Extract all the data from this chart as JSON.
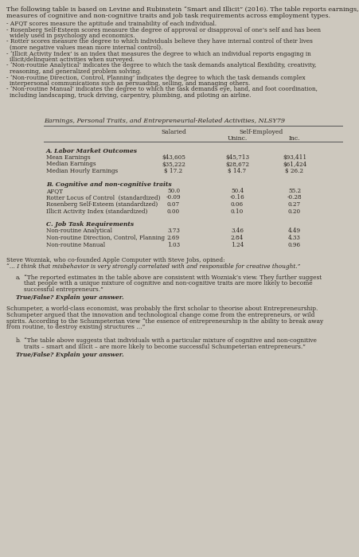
{
  "bg_color": "#cdc8be",
  "intro_text_line1": "The following table is based on Levine and Rubinstein “Smart and Illicit” (2016). The table reports earnings,",
  "intro_text_line2": "measures of cognitive and non-cognitive traits and job task requirements across employment types.",
  "bullets": [
    "- AFQT scores measure the aptitude and trainability of each individual.",
    "- Rosenberg Self-Esteem scores measure the degree of approval or disapproval of one’s self and has been\n  widely used in psychology and economics.",
    "- Rotter scores measure the degree to which individuals believe they have internal control of their lives\n  (more negative values mean more internal control).",
    "- ‘Illicit Activity Index’ is an index that measures the degree to which an individual reports engaging in\n  illicit/delinquent activities when surveyed.",
    "- ‘Non-routine Analytical’ indicates the degree to which the task demands analytical flexibility, creativity,\n  reasoning, and generalized problem solving.",
    "- ‘Non-routine Direction, Control, Planning’ indicates the degree to which the task demands complex\n  interpersonal communications such as persuading, selling, and managing others.",
    "- ‘Non-routine Manual’ indicates the degree to which the task demands eye, hand, and foot coordination,\n  including landscaping, truck driving, carpentry, plumbing, and piloting an airline."
  ],
  "table_title": "Earnings, Personal Traits, and Entrepreneurial-Related Activities, NLSY79",
  "sections": [
    {
      "header": "A. Labor Market Outcomes",
      "rows": [
        [
          "Mean Earnings",
          "$43,605",
          "$45,713",
          "$93,411"
        ],
        [
          "Median Earnings",
          "$35,222",
          "$28,672",
          "$61,424"
        ],
        [
          "Median Hourly Earnings",
          "$ 17.2",
          "$ 14.7",
          "$ 26.2"
        ]
      ]
    },
    {
      "header": "B. Cognitive and non-cognitive traits",
      "rows": [
        [
          "AFQT",
          "50.0",
          "50.4",
          "55.2"
        ],
        [
          "Rotter Locus of Control  (standardized)",
          "-0.09",
          "-0.16",
          "-0.28"
        ],
        [
          "Rosenberg Self-Esteem (standardized)",
          "0.07",
          "0.06",
          "0.27"
        ],
        [
          "Illicit Activity Index (standardized)",
          "0.00",
          "0.10",
          "0.20"
        ]
      ]
    },
    {
      "header": "C. Job Task Requirements",
      "rows": [
        [
          "Non-routine Analytical",
          "3.73",
          "3.46",
          "4.49"
        ],
        [
          "Non-routine Direction, Control, Planning",
          "2.69",
          "2.84",
          "4.33"
        ],
        [
          "Non-routine Manual",
          "1.03",
          "1.24",
          "0.96"
        ]
      ]
    }
  ],
  "wozniak_intro": "Steve Wozniak, who co-founded Apple Computer with Steve Jobs, opined:",
  "wozniak_quote": "“... I think that misbehavior is very strongly correlated with and responsible for creative thought.”",
  "question_a_label": "a.",
  "question_a_text": "“The reported estimates in the table above are consistent with Wozniak’s view. They further suggest\nthat people with a unique mixture of cognitive and non-cognitive traits are more likely to become\nsuccessful entrepreneurs.”",
  "question_a_prompt": "True/False? Explain your answer.",
  "schumpeter_text": "Schumpeter, a world-class economist, was probably the first scholar to theorise about Entrepreneurship.\nSchumpeter argued that the innovation and technological change come from the entrepreneurs, or wild\nspirits. According to the Schumpeterian view “the essence of entrepreneurship is the ability to break away\nfrom routine, to destroy existing structures …”",
  "question_b_label": "b.",
  "question_b_text": "“The table above suggests that individuals with a particular mixture of cognitive and non-cognitive\ntraits – smart and illicit – are more likely to become successful Schumpeterian entrepreneurs.”",
  "question_b_prompt": "True/False? Explain your answer.",
  "text_color": "#2a2520"
}
